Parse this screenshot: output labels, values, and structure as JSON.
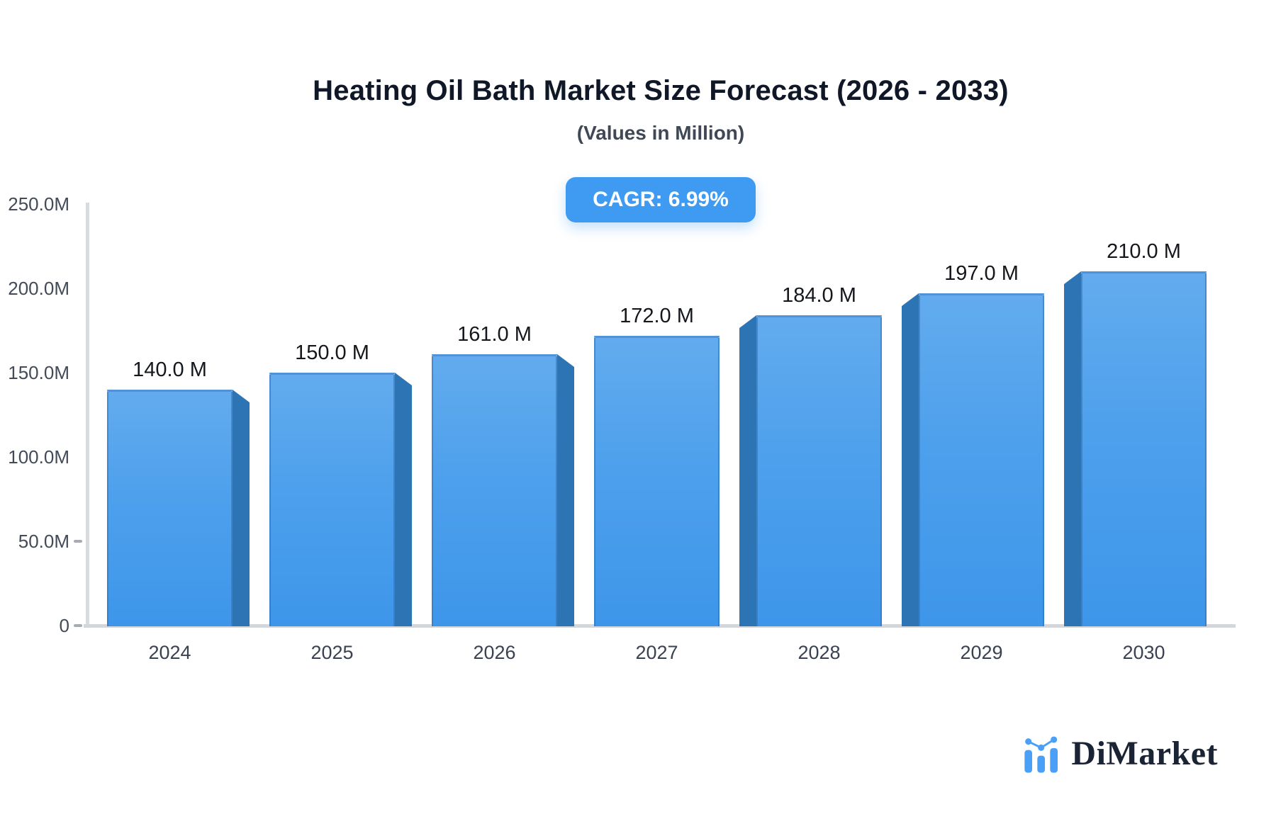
{
  "title": "Heating Oil Bath Market Size Forecast (2026 - 2033)",
  "subtitle": "(Values in Million)",
  "badge": {
    "label": "CAGR: 6.99%"
  },
  "chart_data": {
    "type": "bar",
    "title": "Heating Oil Bath Market Size Forecast (2026 - 2033)",
    "subtitle": "(Values in Million)",
    "annotation": "CAGR: 6.99%",
    "categories": [
      "2024",
      "2025",
      "2026",
      "2027",
      "2028",
      "2029",
      "2030"
    ],
    "values": [
      140,
      150,
      161,
      172,
      184,
      197,
      210
    ],
    "bar_labels": [
      "140.0 M",
      "150.0 M",
      "161.0 M",
      "172.0 M",
      "184.0 M",
      "197.0 M",
      "210.0 M"
    ],
    "unit": "Million",
    "xlabel": "",
    "ylabel": "",
    "ylim": [
      0,
      250
    ],
    "yticks": [
      250,
      200,
      150,
      100,
      50,
      0
    ],
    "ytick_labels": [
      "250.0M",
      "200.0M",
      "150.0M",
      "100.0M",
      "50.0M",
      "0"
    ],
    "ticks_with_dash": [
      50,
      0
    ],
    "grid": false,
    "legend": false,
    "style_3d": true,
    "bar_face_color_top": "#63abee",
    "bar_face_color_bottom": "#3e96ea",
    "bar_side_color": "#2d74b4"
  },
  "logo": {
    "text": "DiMarket",
    "icon": "mini-bar-chart-icon",
    "icon_color": "#4aa0f6",
    "text_color": "#1b2435"
  },
  "colors": {
    "background": "#ffffff",
    "badge_bg": "#3f9bf2",
    "badge_text": "#ffffff",
    "axis_line": "#d5d8dc",
    "axis_label": "#434b59",
    "data_label": "#14171c",
    "title": "#101828",
    "subtitle": "#3f4854"
  }
}
